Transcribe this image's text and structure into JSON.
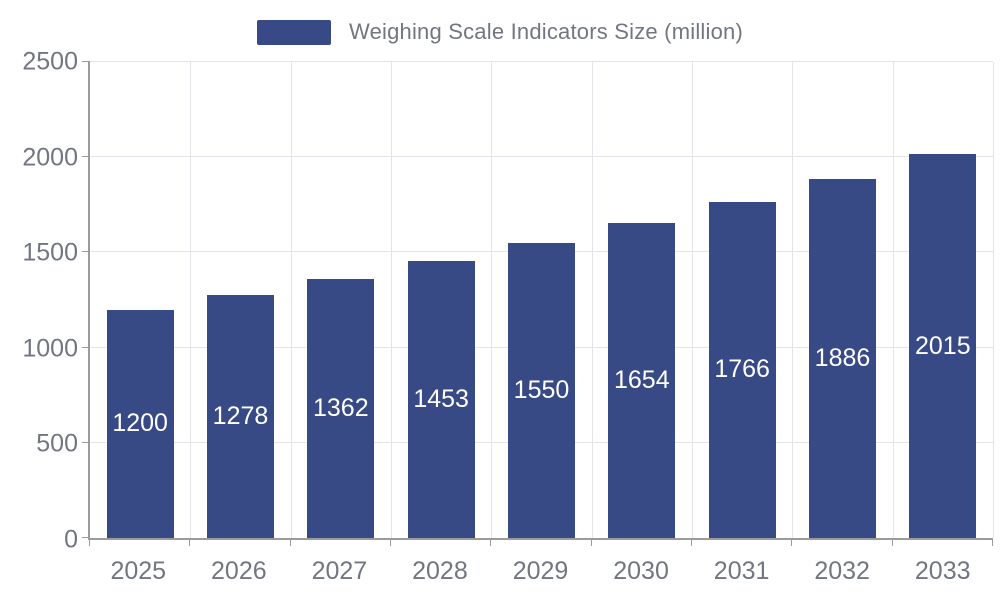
{
  "chart_data": {
    "type": "bar",
    "title": "Weighing Scale Indicators Size (million)",
    "categories": [
      "2025",
      "2026",
      "2027",
      "2028",
      "2029",
      "2030",
      "2031",
      "2032",
      "2033"
    ],
    "values": [
      1200,
      1278,
      1362,
      1453,
      1550,
      1654,
      1766,
      1886,
      2015
    ],
    "xlabel": "",
    "ylabel": "",
    "ylim": [
      0,
      2500
    ],
    "yticks": [
      0,
      500,
      1000,
      1500,
      2000,
      2500
    ],
    "grid": "on",
    "legend_position": "top-center",
    "value_labels": "inside-center",
    "colors": {
      "bar": "#384A85",
      "gridline": "#E3E3E9",
      "axis_line": "#9B9B9B",
      "axis_text": "#717680",
      "value_text": "#FFFFFF",
      "background": "#FFFFFF"
    }
  },
  "legend": {
    "label": "Weighing Scale Indicators Size (million)"
  }
}
